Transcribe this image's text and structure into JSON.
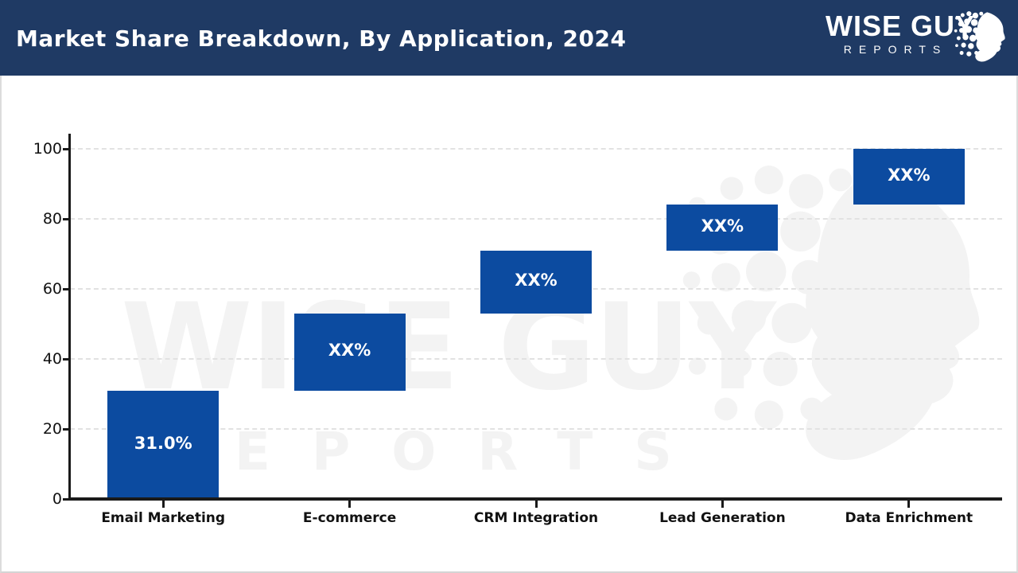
{
  "header": {
    "title": "Market Share Breakdown, By Application, 2024",
    "logo": {
      "wordmark": "WISE GUY",
      "sub": "REPORTS"
    }
  },
  "watermark": {
    "wordmark": "WISE GUY",
    "sub": "REPORTS"
  },
  "colors": {
    "header_bg": "#1f3a64",
    "bar": "#0c4ba0",
    "bar_label": "#ffffff",
    "axis": "#1a1a1a",
    "grid": "#e2e2e2",
    "text": "#111111",
    "watermark": "#f3f3f3",
    "border": "#dcdcdc"
  },
  "chart_data": {
    "type": "bar",
    "subtype": "waterfall",
    "title": "Market Share Breakdown, By Application, 2024",
    "unit": "percent",
    "categories": [
      "Email Marketing",
      "E-commerce",
      "CRM Integration",
      "Lead Generation",
      "Data Enrichment"
    ],
    "bars": [
      {
        "category": "Email Marketing",
        "start": 0,
        "end": 31,
        "value_label": "31.0%"
      },
      {
        "category": "E-commerce",
        "start": 31,
        "end": 53,
        "value_label": "XX%"
      },
      {
        "category": "CRM Integration",
        "start": 53,
        "end": 71,
        "value_label": "XX%"
      },
      {
        "category": "Lead Generation",
        "start": 71,
        "end": 84,
        "value_label": "XX%"
      },
      {
        "category": "Data Enrichment",
        "start": 84,
        "end": 100,
        "value_label": "XX%"
      }
    ],
    "yticks": [
      0,
      20,
      40,
      60,
      80,
      100
    ],
    "ylim": [
      0,
      105
    ],
    "grid": "dashed-horizontal",
    "legend": false
  }
}
